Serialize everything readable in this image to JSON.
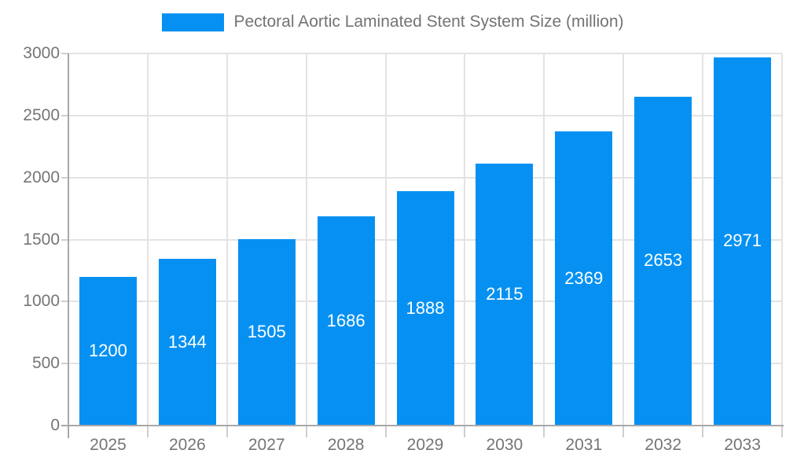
{
  "colors": {
    "background": "#ffffff",
    "bar": "#0691f2",
    "legend_text": "#737373",
    "axis_text": "#757575",
    "grid_line": "#e3e3e3",
    "axis_line": "#a8a8a8",
    "tick": "#cfcfcf",
    "value_label": "#ffffff"
  },
  "chart_data": {
    "type": "bar",
    "title": "Pectoral Aortic Laminated Stent System Size (million)",
    "categories": [
      "2025",
      "2026",
      "2027",
      "2028",
      "2029",
      "2030",
      "2031",
      "2032",
      "2033"
    ],
    "values": [
      1200,
      1344,
      1505,
      1686,
      1888,
      2115,
      2369,
      2653,
      2971
    ],
    "xlabel": "",
    "ylabel": "",
    "ylim": [
      0,
      3000
    ],
    "yticks": [
      0,
      500,
      1000,
      1500,
      2000,
      2500,
      3000
    ],
    "grid": true,
    "legend_position": "top-center",
    "value_label_position": "inside-center"
  }
}
